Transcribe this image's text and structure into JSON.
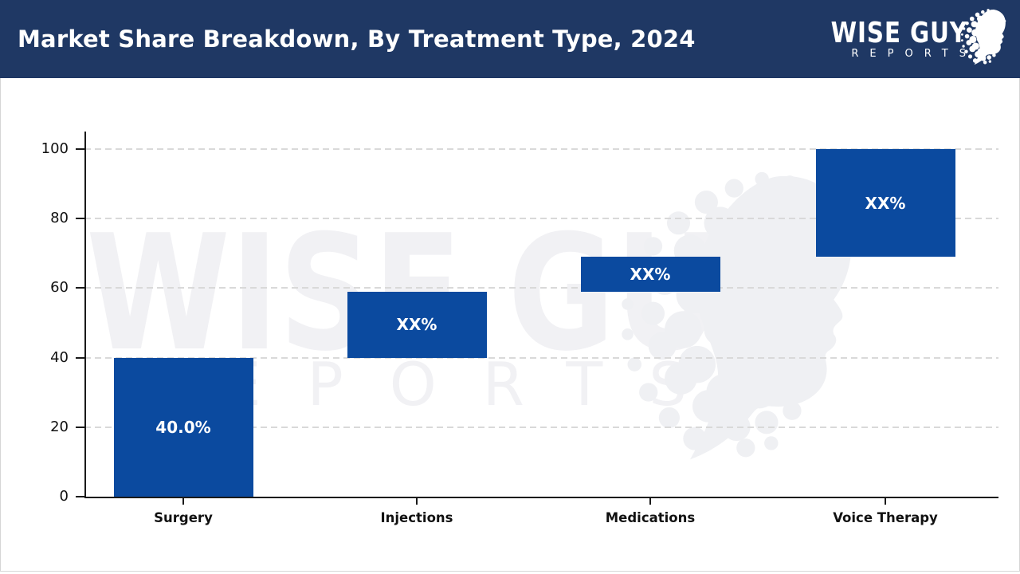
{
  "header": {
    "title": "Market Share Breakdown, By Treatment Type, 2024",
    "brand": {
      "line1": "WISE GUY",
      "line2": "REPORTS"
    }
  },
  "watermark": {
    "line1": "WISE GUY",
    "line2": "REPORTS"
  },
  "colors": {
    "header_bg": "#1f3864",
    "bar": "#0b4a9f",
    "grid": "#d9d9d9",
    "axis": "#1a1a1a",
    "bar_label": "#ffffff",
    "watermark": "#f1f1f4"
  },
  "chart_data": {
    "type": "bar",
    "variant": "waterfall",
    "title": "Market Share Breakdown, By Treatment Type, 2024",
    "xlabel": "",
    "ylabel": "",
    "categories": [
      "Surgery",
      "Injections",
      "Medications",
      "Voice Therapy"
    ],
    "segments": [
      {
        "category": "Surgery",
        "start": 0,
        "end": 40,
        "label": "40.0%"
      },
      {
        "category": "Injections",
        "start": 40,
        "end": 59,
        "label": "XX%"
      },
      {
        "category": "Medications",
        "start": 59,
        "end": 69,
        "label": "XX%"
      },
      {
        "category": "Voice Therapy",
        "start": 69,
        "end": 100,
        "label": "XX%"
      }
    ],
    "y_ticks": [
      0,
      20,
      40,
      60,
      80,
      100
    ],
    "ylim": [
      0,
      105
    ],
    "grid": "horizontal-dashed",
    "legend": "none"
  }
}
